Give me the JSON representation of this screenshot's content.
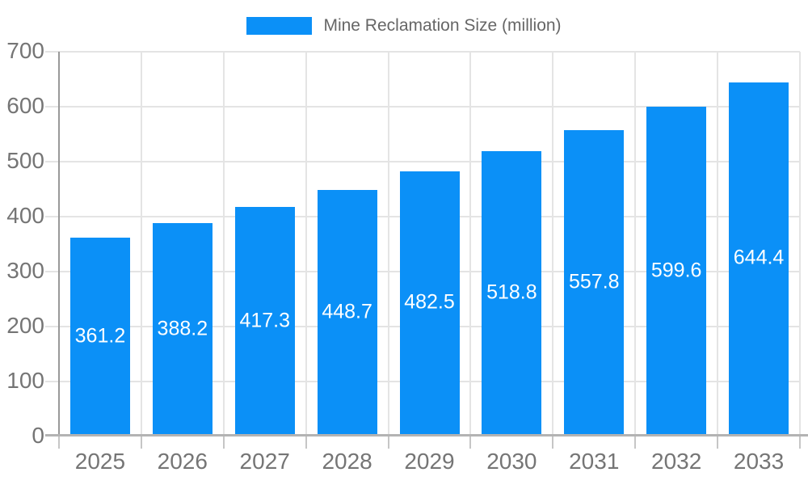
{
  "legend": {
    "label": "Mine Reclamation Size (million)"
  },
  "chart_data": {
    "type": "bar",
    "title": "Mine Reclamation Size (million)",
    "categories": [
      "2025",
      "2026",
      "2027",
      "2028",
      "2029",
      "2030",
      "2031",
      "2032",
      "2033"
    ],
    "values": [
      361.2,
      388.2,
      417.3,
      448.7,
      482.5,
      518.8,
      557.8,
      599.6,
      644.4
    ],
    "xlabel": "",
    "ylabel": "",
    "ylim": [
      0,
      700
    ],
    "yticks": [
      0,
      100,
      200,
      300,
      400,
      500,
      600,
      700
    ],
    "grid": true,
    "legend_position": "top-center",
    "value_labels": "inside-center",
    "colors": {
      "bar": "#0b90f7",
      "value_label_text": "#ffffff",
      "axis_text": "#757575",
      "legend_text": "#666666",
      "gridline": "#e4e4e4",
      "tick": "#c6c6c6",
      "y_axis_line": "#999999",
      "x_axis_line": "#b3b3b3"
    }
  }
}
